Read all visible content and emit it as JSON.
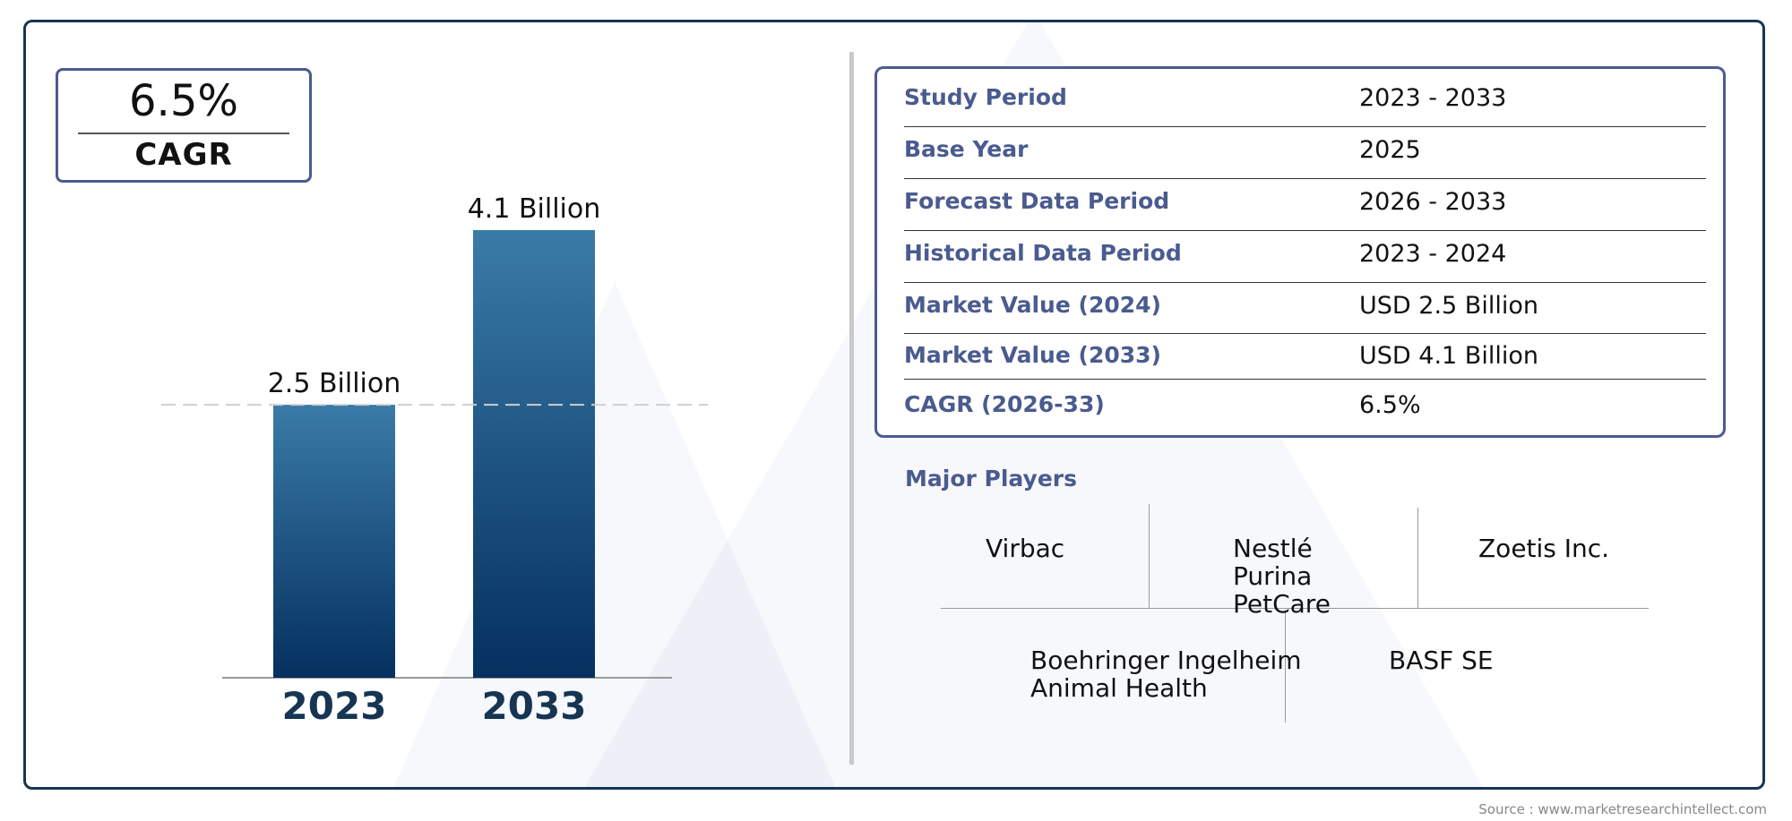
{
  "cagr_badge": {
    "value": "6.5%",
    "label": "CAGR"
  },
  "chart_data": {
    "type": "bar",
    "categories": [
      "2023",
      "2033"
    ],
    "values": [
      2.5,
      4.1
    ],
    "data_labels": [
      "2.5 Billion",
      "4.1 Billion"
    ],
    "unit": "Billion",
    "grid": false,
    "legend": "none",
    "colors": {
      "bar_top": "#3a7ba8",
      "bar_bottom": "#05305f",
      "year_label": "#163553"
    }
  },
  "info_table": [
    {
      "label": "Study Period",
      "value": "2023 - 2033"
    },
    {
      "label": "Base Year",
      "value": "2025"
    },
    {
      "label": "Forecast Data Period",
      "value": "2026 - 2033"
    },
    {
      "label": "Historical Data Period",
      "value": "2023 - 2024"
    },
    {
      "label": "Market Value (2024)",
      "value": "USD 2.5 Billion"
    },
    {
      "label": "Market Value (2033)",
      "value": "USD 4.1 Billion"
    },
    {
      "label": "CAGR (2026-33)",
      "value": "6.5%"
    }
  ],
  "players": {
    "title": "Major Players",
    "top": [
      {
        "lines": [
          "Virbac"
        ]
      },
      {
        "lines": [
          "Nestlé",
          "Purina",
          "PetCare"
        ]
      },
      {
        "lines": [
          "Zoetis Inc."
        ]
      }
    ],
    "bottom": [
      {
        "lines": [
          "Boehringer Ingelheim",
          "Animal Health"
        ]
      },
      {
        "lines": [
          "BASF SE"
        ]
      }
    ]
  },
  "source": "Source : www.marketresearchintellect.com",
  "colors": {
    "accent": "#4a5b8f",
    "frame": "#163553"
  }
}
